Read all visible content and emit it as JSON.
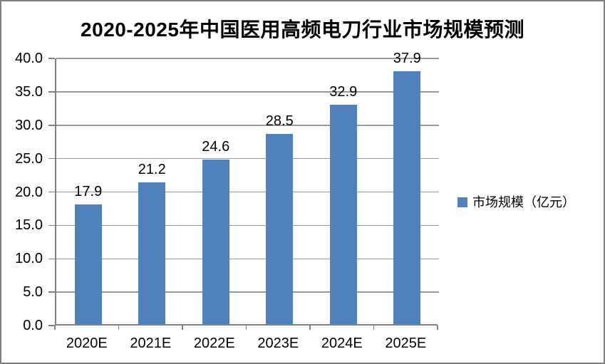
{
  "window": {
    "background": "#FFFFFF",
    "border_color": "#7F7F7F"
  },
  "chart_data": {
    "type": "bar",
    "title": "2020-2025年中国医用高频电刀行业市场规模预测",
    "categories": [
      "2020E",
      "2021E",
      "2022E",
      "2023E",
      "2024E",
      "2025E"
    ],
    "series": [
      {
        "name": "市场规模（亿元）",
        "color": "#4F81BD",
        "values": [
          17.9,
          21.2,
          24.6,
          28.5,
          32.9,
          37.9
        ]
      }
    ],
    "data_labels": [
      "17.9",
      "21.2",
      "24.6",
      "28.5",
      "32.9",
      "37.9"
    ],
    "xlabel": "",
    "ylabel": "",
    "ylim": [
      0,
      40
    ],
    "ytick_step": 5,
    "ytick_labels": [
      "0.0",
      "5.0",
      "10.0",
      "15.0",
      "20.0",
      "25.0",
      "30.0",
      "35.0",
      "40.0"
    ],
    "grid": true,
    "legend_position": "right-middle",
    "colors": {
      "bar": "#4F81BD",
      "gridline": "#979797",
      "axis": "#808080",
      "text": "#000000"
    }
  },
  "legend": {
    "items": [
      {
        "label": "市场规模（亿元）",
        "swatch_color": "#4F81BD"
      }
    ]
  }
}
